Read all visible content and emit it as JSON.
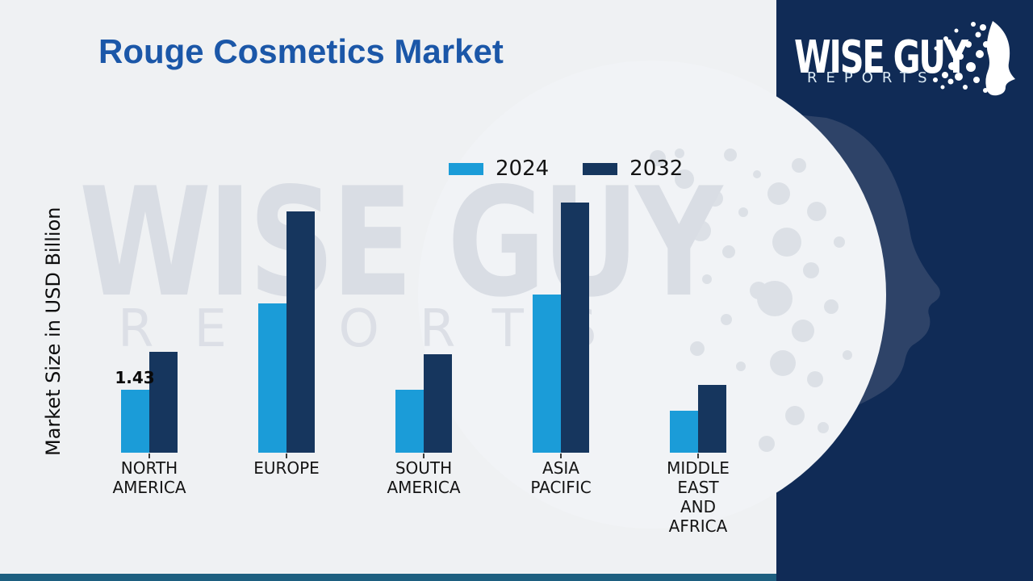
{
  "header": {
    "title": "Rouge Cosmetics Market"
  },
  "branding": {
    "logo_wordmark": "WISE GUY",
    "logo_subtext": "REPORTS",
    "watermark_wordmark": "WISE GUY",
    "watermark_subtext": "REPORTS"
  },
  "colors": {
    "page_bg": "#eff1f3",
    "title_blue": "#1b57a8",
    "panel_navy": "#102b56",
    "face_navy": "#2e4368",
    "circle_light": "#f1f3f6",
    "dot_gray": "#ccd2da",
    "bar_2024": "#1b9cd8",
    "bar_2032": "#16365e",
    "footer_teal": "#1d5f80"
  },
  "chart_data": {
    "type": "bar",
    "title": "Rouge Cosmetics Market",
    "xlabel": "",
    "ylabel": "Market Size in USD Billion",
    "categories": [
      "NORTH AMERICA",
      "EUROPE",
      "SOUTH AMERICA",
      "ASIA PACIFIC",
      "MIDDLE EAST AND AFRICA"
    ],
    "series": [
      {
        "name": "2024",
        "color": "#1b9cd8",
        "values": [
          1.43,
          3.4,
          1.43,
          3.6,
          0.95
        ]
      },
      {
        "name": "2032",
        "color": "#16365e",
        "values": [
          2.3,
          5.5,
          2.25,
          5.7,
          1.55
        ]
      }
    ],
    "annotations": [
      {
        "series": "2024",
        "category": "NORTH AMERICA",
        "text": "1.43"
      }
    ],
    "ylim": [
      0,
      6.6
    ],
    "grid": false,
    "legend_position": "top-center"
  }
}
